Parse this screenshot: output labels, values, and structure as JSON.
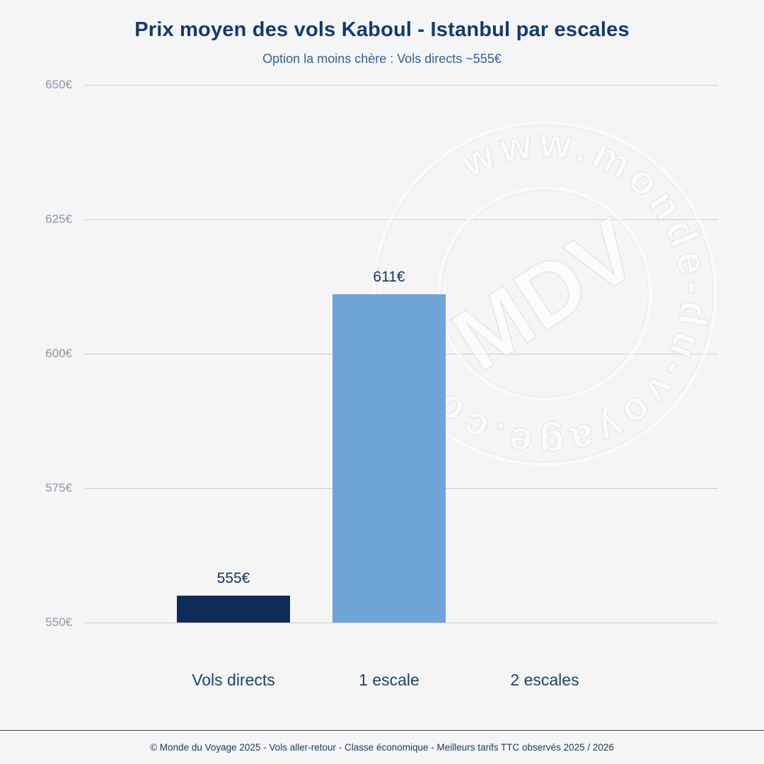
{
  "header": {
    "title": "Prix moyen des vols Kaboul - Istanbul par escales",
    "subtitle": "Option la moins chère : Vols directs ~555€"
  },
  "chart_data": {
    "type": "bar",
    "title": "Prix moyen des vols Kaboul - Istanbul par escales",
    "subtitle": "Option la moins chère : Vols directs ~555€",
    "categories": [
      "Vols directs",
      "1 escale",
      "2 escales"
    ],
    "values": [
      555,
      611,
      null
    ],
    "value_labels": [
      "555€",
      "611€",
      ""
    ],
    "bar_colors": [
      "#0f2b58",
      "#6fa4d9",
      "#6fa4d9"
    ],
    "xlabel": "",
    "ylabel": "",
    "ylim": [
      550,
      650
    ],
    "yticks": [
      550,
      575,
      600,
      625,
      650
    ],
    "ytick_labels": [
      "550€",
      "575€",
      "600€",
      "625€",
      "650€"
    ],
    "grid": true,
    "legend": false,
    "currency": "€"
  },
  "watermark": {
    "ring_text": "www.monde-du-voyage.com . ",
    "center_text": "MDV"
  },
  "footer": {
    "text": "© Monde du Voyage 2025 - Vols aller-retour - Classe économique - Meilleurs tarifs TTC observés 2025 / 2026"
  },
  "colors": {
    "background": "#f5f5f6",
    "title": "#133b6d",
    "subtitle": "#2f639c",
    "gridline": "#c7ccd4",
    "ytick": "#8d98a8",
    "bar_direct": "#0f2b58",
    "bar_one_stop": "#6fa4d9",
    "footer_text": "#1b3a5c"
  }
}
